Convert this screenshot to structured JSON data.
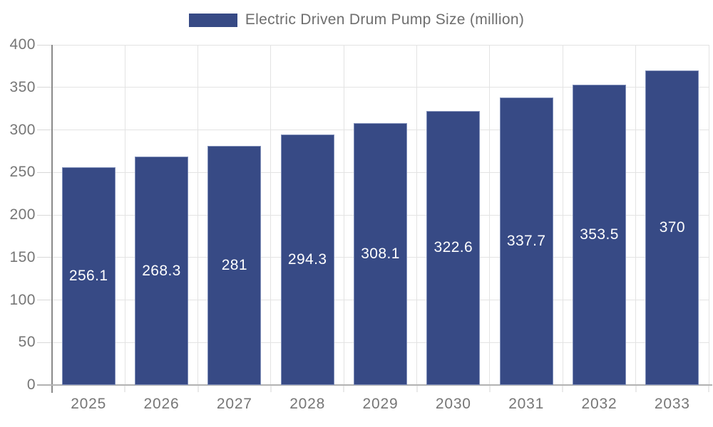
{
  "chart_data": {
    "type": "bar",
    "title": "Electric Driven Drum Pump Size (million)",
    "categories": [
      "2025",
      "2026",
      "2027",
      "2028",
      "2029",
      "2030",
      "2031",
      "2032",
      "2033"
    ],
    "values": [
      256.1,
      268.3,
      281,
      294.3,
      308.1,
      322.6,
      337.7,
      353.5,
      370
    ],
    "value_labels": [
      "256.1",
      "268.3",
      "281",
      "294.3",
      "308.1",
      "322.6",
      "337.7",
      "353.5",
      "370"
    ],
    "xlabel": "",
    "ylabel": "",
    "ylim": [
      0,
      400
    ],
    "yticks": [
      0,
      50,
      100,
      150,
      200,
      250,
      300,
      350,
      400
    ],
    "grid": "horizontal-and-vertical",
    "legend_position": "top-center",
    "colors": {
      "bar_fill": "#374a85",
      "bar_edge": "#8d9ac6",
      "data_label": "#ffffff",
      "axis_tick_label": "#767676",
      "legend_text": "#6e6e6e",
      "gridline": "#e3e3e3",
      "y_axis_line": "#8a8a8a",
      "x_axis_line": "#b2b2b2",
      "background": "#ffffff"
    }
  }
}
